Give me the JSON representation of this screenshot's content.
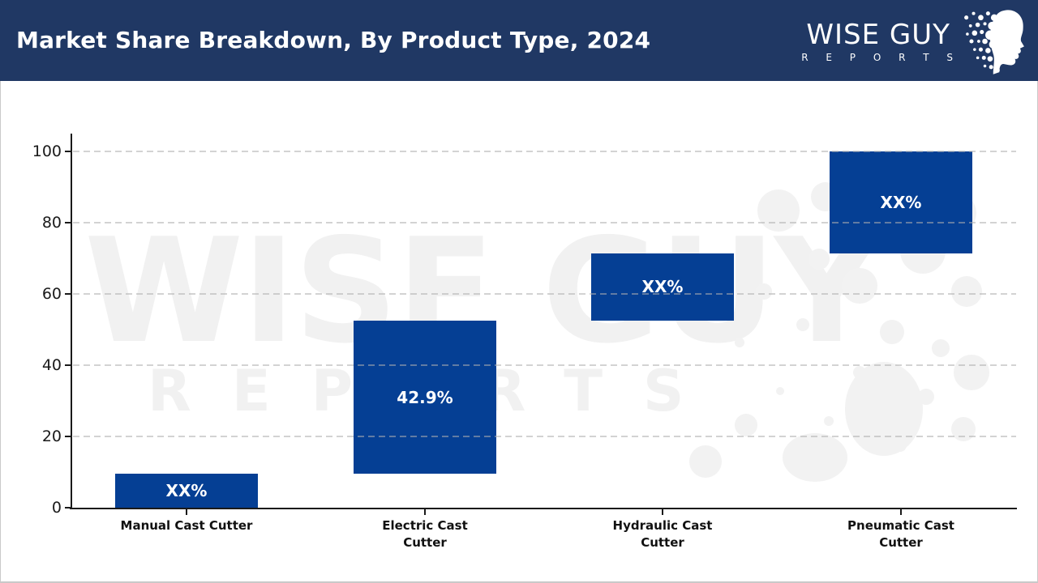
{
  "header": {
    "title": "Market Share Breakdown, By Product Type, 2024",
    "logo": {
      "line1": "WISE GUY",
      "line2": "R E P O R T S",
      "icon": "dotted-face-profile"
    }
  },
  "watermark": {
    "line1": "WISE GUY",
    "line2": "REPORTS"
  },
  "colors": {
    "header_bg": "#203864",
    "bar_blue": "#053f94",
    "axis": "#1a1a1a",
    "gridline": "#d4d4d4",
    "watermark": "#f1f1f1",
    "label_text": "#ffffff"
  },
  "chart_data": {
    "type": "bar",
    "subtype": "floating-segment-bars",
    "title": "Market Share Breakdown, By Product Type, 2024",
    "categories": [
      "Manual Cast Cutter",
      "Electric Cast Cutter",
      "Hydraulic Cast Cutter",
      "Pneumatic Cast Cutter"
    ],
    "category_label_lines": [
      [
        "Manual Cast Cutter"
      ],
      [
        "Electric Cast",
        "Cutter"
      ],
      [
        "Hydraulic Cast",
        "Cutter"
      ],
      [
        "Pneumatic Cast",
        "Cutter"
      ]
    ],
    "segments": [
      {
        "category": "Manual Cast Cutter",
        "start": 0,
        "end": 9.5,
        "value_label": "XX%"
      },
      {
        "category": "Electric Cast Cutter",
        "start": 9.5,
        "end": 52.4,
        "value_label": "42.9%"
      },
      {
        "category": "Hydraulic Cast Cutter",
        "start": 52.4,
        "end": 71.4,
        "value_label": "XX%"
      },
      {
        "category": "Pneumatic Cast Cutter",
        "start": 71.4,
        "end": 100,
        "value_label": "XX%"
      }
    ],
    "yticks": [
      0,
      20,
      40,
      60,
      80,
      100
    ],
    "ylim": [
      0,
      104.8
    ],
    "xlabel": "",
    "ylabel": "",
    "grid": "horizontal-dashed",
    "legend": "none"
  }
}
